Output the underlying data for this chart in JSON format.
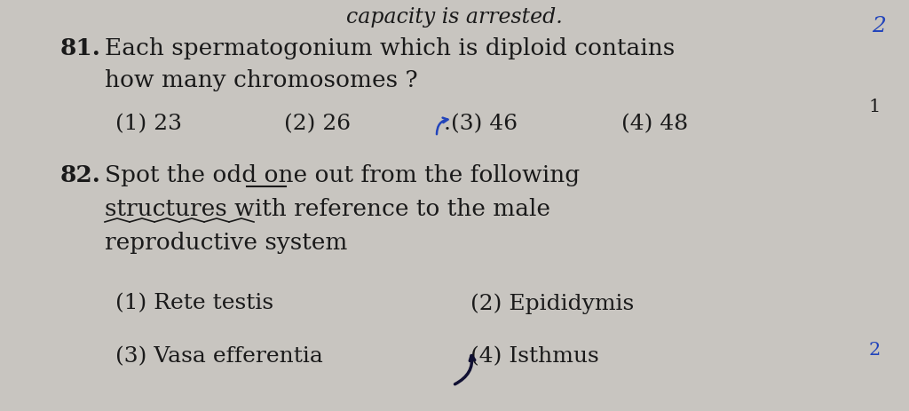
{
  "background_color": "#c8c5c0",
  "page_color": "#e8e5e0",
  "top_text": "capacity is arrested.",
  "q81_number": "81.",
  "q81_line1": "Each spermatogonium which is diploid contains",
  "q81_line2": "how many chromosomes ?",
  "q81_opt1": "(1) 23",
  "q81_opt2": "(2) 26",
  "q81_opt3": ".(3) 46",
  "q81_opt4": "(4) 48",
  "q82_number": "82.",
  "q82_line1": "Spot the odd one out from the following",
  "q82_line2": "structures with reference to the male",
  "q82_line3": "reproductive system",
  "q82_opt1": "(1) Rete testis",
  "q82_opt2": "(2) Epididymis",
  "q82_opt3": "(3) Vasa efferentia",
  "q82_opt4": "(4) Isthmus",
  "mark1": "1",
  "mark2": "2",
  "text_color": "#1a1a1a",
  "blue_color": "#2244bb",
  "fs_main": 19,
  "fs_opt": 18
}
